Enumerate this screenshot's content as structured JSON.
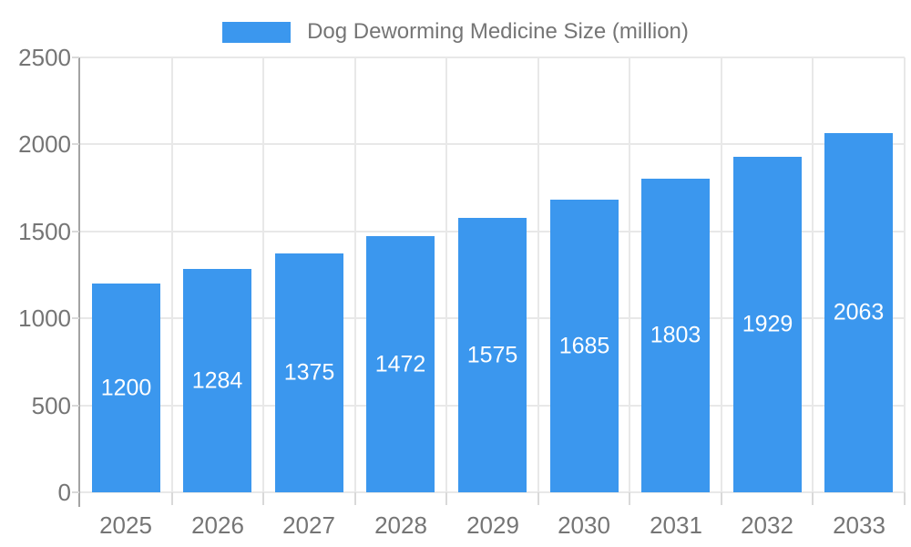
{
  "chart_data": {
    "type": "bar",
    "title": "Dog Deworming Medicine Size (million)",
    "categories": [
      "2025",
      "2026",
      "2027",
      "2028",
      "2029",
      "2030",
      "2031",
      "2032",
      "2033"
    ],
    "values": [
      1200,
      1284,
      1375,
      1472,
      1575,
      1685,
      1803,
      1929,
      2063
    ],
    "xlabel": "",
    "ylabel": "",
    "ylim": [
      0,
      2500
    ],
    "yticks": [
      0,
      500,
      1000,
      1500,
      2000,
      2500
    ],
    "grid": true,
    "bar_labels_visible": true,
    "legend": {
      "position": "top-center",
      "label": "Dog Deworming Medicine Size (million)"
    },
    "colors": {
      "bar": "#3b97ee",
      "bar_label_text": "#ffffff",
      "axis_text": "#757575",
      "gridline": "#e8e8e8",
      "axis_line": "#a3a3a3",
      "tick": "#d9d9d9",
      "background": "#ffffff"
    }
  }
}
